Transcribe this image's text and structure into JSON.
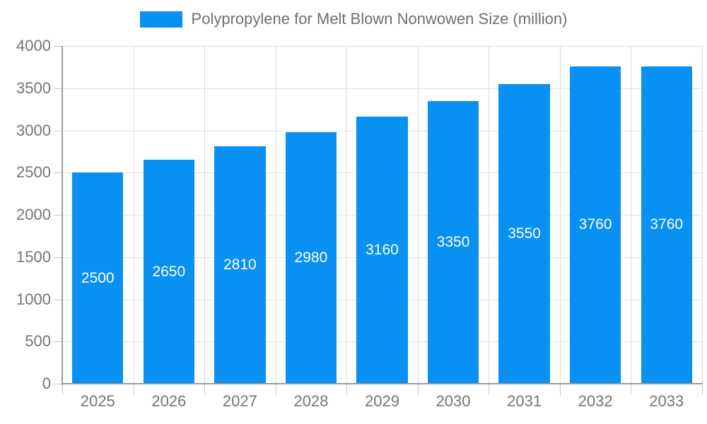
{
  "legend": {
    "label": "Polypropylene for Melt Blown Nonwowen Size (million)"
  },
  "colors": {
    "bar": "#0890f2",
    "bar_label": "#ffffff",
    "axis_line": "#9a9a9a",
    "grid_h": "#e2e2e2",
    "grid_v": "#dadada",
    "tick": "#c7c7c7",
    "axis_text": "#757575",
    "legend_text": "#6e6e6e",
    "background": "#ffffff"
  },
  "chart_data": {
    "type": "bar",
    "categories": [
      "2025",
      "2026",
      "2027",
      "2028",
      "2029",
      "2030",
      "2031",
      "2032",
      "2033"
    ],
    "series": [
      {
        "name": "Polypropylene for Melt Blown Nonwowen Size (million)",
        "values": [
          2500,
          2650,
          2810,
          2980,
          3160,
          3350,
          3550,
          3760,
          3760
        ]
      }
    ],
    "title": "",
    "xlabel": "",
    "ylabel": "",
    "ylim": [
      0,
      4000
    ],
    "ytick_step": 500,
    "yticks": [
      "0",
      "500",
      "1000",
      "1500",
      "2000",
      "2500",
      "3000",
      "3500",
      "4000"
    ],
    "grid": true,
    "legend_position": "top",
    "value_labels": "inside-center"
  }
}
